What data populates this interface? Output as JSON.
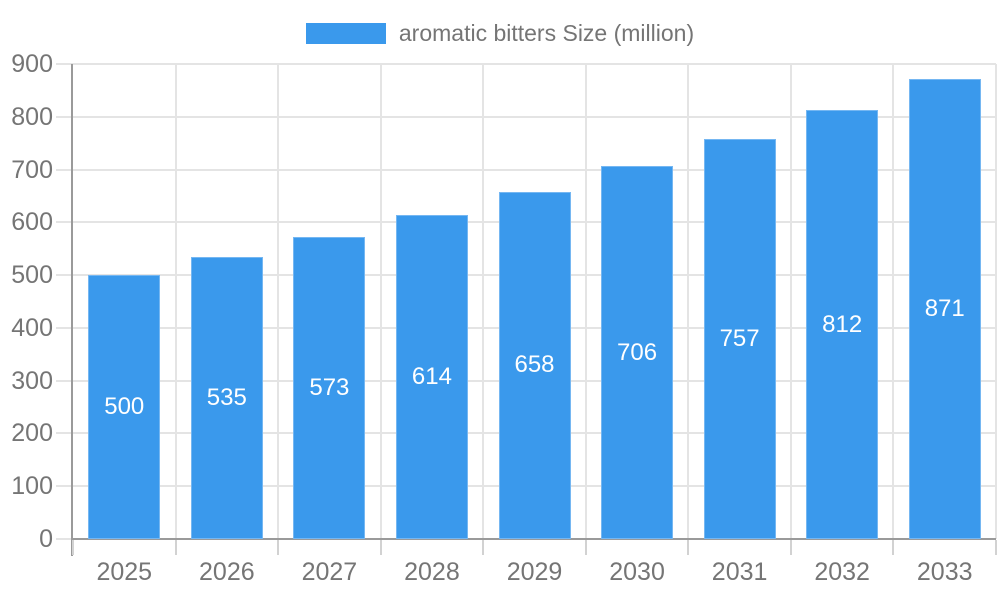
{
  "legend": {
    "label": "aromatic bitters Size (million)",
    "position": "top"
  },
  "chart_data": {
    "type": "bar",
    "title": "aromatic bitters Size (million)",
    "series_name": "aromatic bitters Size (million)",
    "categories": [
      "2025",
      "2026",
      "2027",
      "2028",
      "2029",
      "2030",
      "2031",
      "2032",
      "2033"
    ],
    "values": [
      500,
      535,
      573,
      614,
      658,
      706,
      757,
      812,
      871
    ],
    "xlabel": "",
    "ylabel": "",
    "ylim": [
      0,
      900
    ],
    "ytick_step": 100,
    "ytick_labels": [
      "0",
      "100",
      "200",
      "300",
      "400",
      "500",
      "600",
      "700",
      "800",
      "900"
    ],
    "grid": true,
    "legend_position": "top",
    "value_labels": "inside-center-white"
  },
  "colors": {
    "bar": "#3a99ec",
    "value_text": "#ffffff",
    "axis_text": "#757575",
    "grid_line": "#e4e4e4",
    "axis_line": "#9a9a9a",
    "tick_line": "#d2d2d2",
    "background": "#ffffff"
  }
}
